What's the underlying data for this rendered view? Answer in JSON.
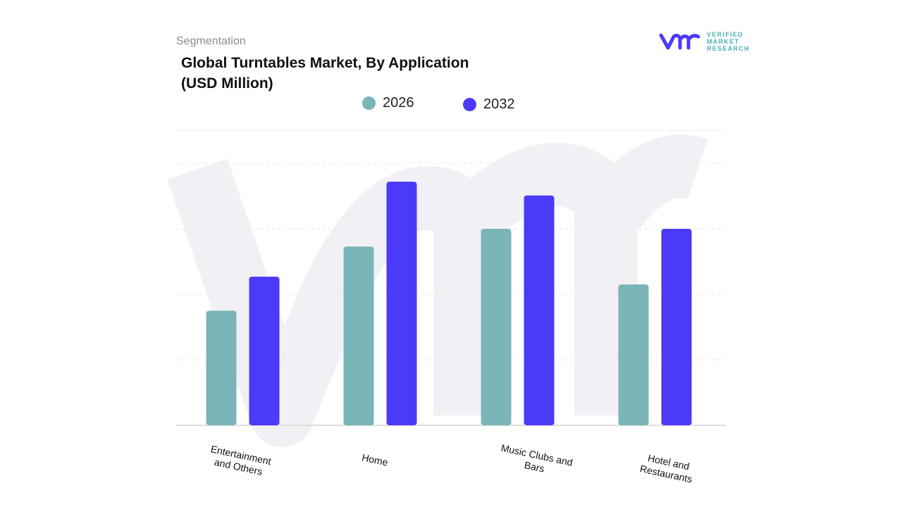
{
  "header": {
    "segment_label": "Segmentation",
    "title": "Global Turntables Market, By Application (USD Million)"
  },
  "logo": {
    "text_line1": "VERIFIED",
    "text_line2": "MARKET",
    "text_line3": "RESEARCH",
    "brand": "VMR"
  },
  "chart_data": {
    "type": "bar",
    "title": "Global Turntables Market, By Application (USD Million)",
    "categories": [
      "Entertainment and Others",
      "Home",
      "Music Clubs and Bars",
      "Hotel and Restaurants"
    ],
    "series": [
      {
        "name": "2026",
        "color": "#7ab5b8",
        "values": [
          175,
          273,
          300,
          215
        ]
      },
      {
        "name": "2032",
        "color": "#4b3af7",
        "values": [
          227,
          372,
          351,
          300
        ]
      }
    ],
    "xlabel": "",
    "ylabel": "",
    "ylim": [
      0,
      450
    ],
    "y_tick_labels_shown": false,
    "grid": true,
    "legend_position": "top-center",
    "note": "values are relative estimates; no y-axis values printed"
  }
}
